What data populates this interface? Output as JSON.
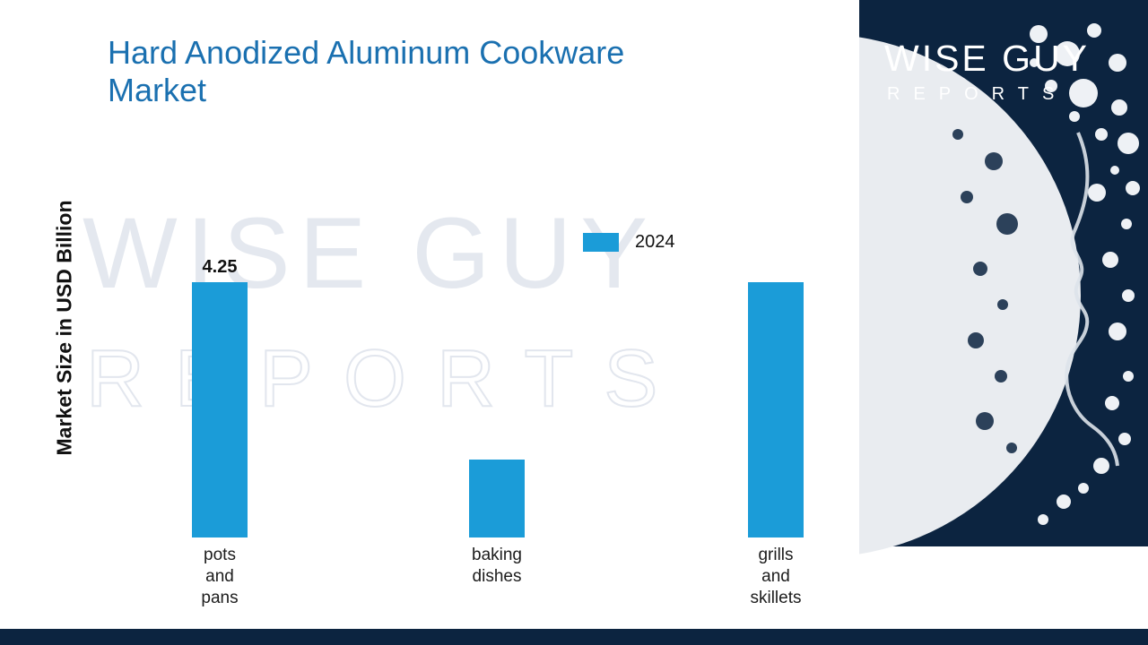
{
  "logo": {
    "name": "WISE GUY",
    "sub": "REPORTS"
  },
  "watermark": {
    "line1": "WISE GUY",
    "line2": "REPORTS"
  },
  "colors": {
    "title_blue": "#1a70b0",
    "bar_blue": "#1b9cd8",
    "navy": "#0c2440",
    "circle_gray": "#e9ecf0",
    "watermark_gray": "#dce1ea"
  },
  "chart_data": {
    "type": "bar",
    "title": "Hard Anodized Aluminum Cookware Market",
    "xlabel": "",
    "ylabel": "Market Size in USD Billion",
    "categories": [
      "pots and pans",
      "baking dishes",
      "grills and skillets"
    ],
    "category_labels": [
      "pots\nand\npans",
      "baking\ndishes",
      "grills\nand\nskillets"
    ],
    "series": [
      {
        "name": "2024",
        "values": [
          4.25,
          1.3,
          4.25
        ]
      }
    ],
    "value_labels": [
      "4.25",
      "",
      ""
    ],
    "ylim": [
      0,
      4.7
    ],
    "grid": false,
    "legend_position": "upper-right",
    "bar_color": "#1b9cd8"
  }
}
